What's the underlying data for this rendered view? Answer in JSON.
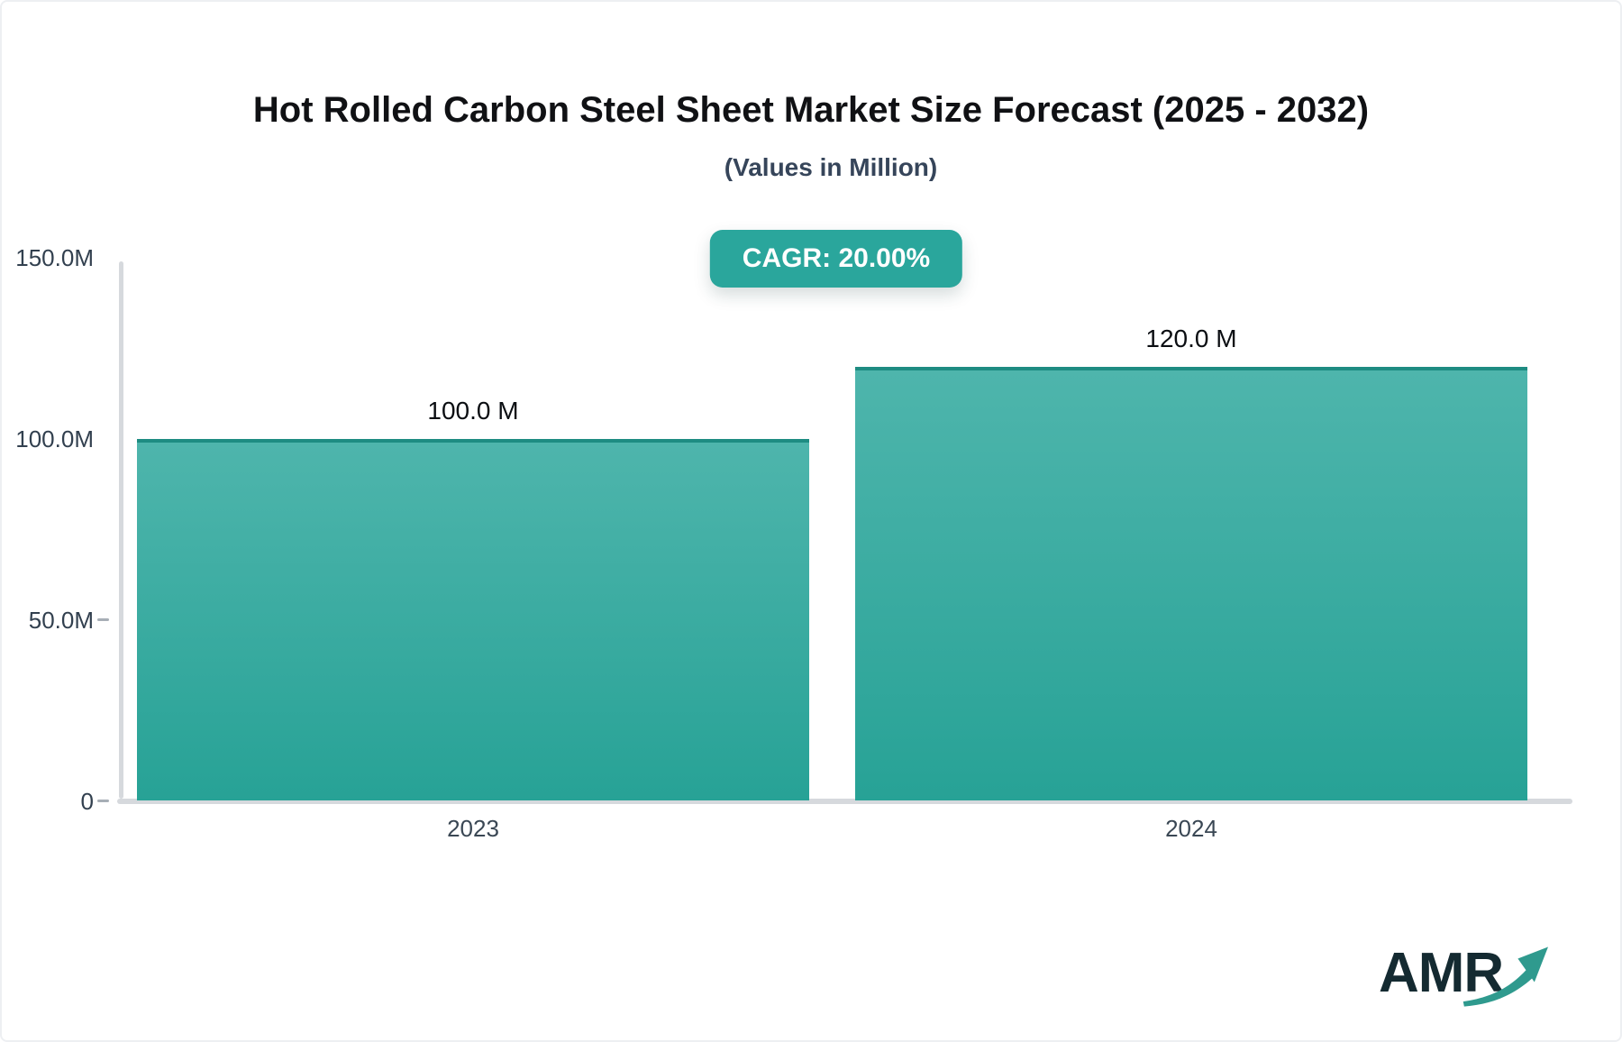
{
  "page": {
    "title": "Hot Rolled Carbon Steel Sheet Market Size Forecast (2025 - 2032)",
    "subtitle": "(Values in Million)",
    "cagr_badge": "CAGR: 20.00%",
    "logo_text": "AMR"
  },
  "colors": {
    "badge_bg": "#2aa69c",
    "bar_gradient_top": "#4eb5ac",
    "bar_gradient_bottom": "#27a296",
    "bar_top_border": "#1e8c82",
    "axis_line": "#d6d9dd",
    "y_label": "#32404f",
    "x_label": "#3a4754",
    "value_label": "#0b0e12",
    "title": "#101114",
    "subtitle": "#36455a",
    "logo_text": "#142a31",
    "logo_arrow": "#2f9a8e"
  },
  "chart_data": {
    "type": "bar",
    "title": "Hot Rolled Carbon Steel Sheet Market Size Forecast (2025 - 2032)",
    "subtitle": "(Values in Million)",
    "cagr_label": "CAGR: 20.00%",
    "unit": "Million",
    "categories": [
      "2023",
      "2024"
    ],
    "values": [
      100.0,
      120.0
    ],
    "value_labels": [
      "100.0 M",
      "120.0 M"
    ],
    "ylim": [
      0,
      150
    ],
    "yticks": [
      {
        "label": "150.0M",
        "value": 150,
        "dash": false
      },
      {
        "label": "100.0M",
        "value": 100,
        "dash": false
      },
      {
        "label": "50.0M",
        "value": 50,
        "dash": true
      },
      {
        "label": "0",
        "value": 0,
        "dash": true
      }
    ],
    "grid": false,
    "legend": false,
    "bar_color": "teal-gradient"
  }
}
